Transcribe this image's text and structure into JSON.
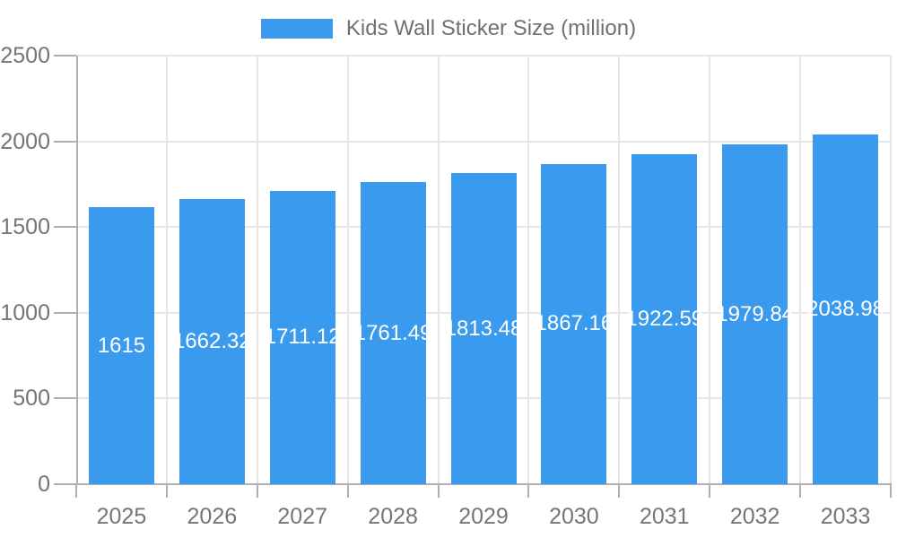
{
  "chart_data": {
    "type": "bar",
    "title": "Kids Wall Sticker Size (million)",
    "legend": {
      "label": "Kids Wall Sticker Size (million)",
      "position": "top"
    },
    "categories": [
      "2025",
      "2026",
      "2027",
      "2028",
      "2029",
      "2030",
      "2031",
      "2032",
      "2033"
    ],
    "series": [
      {
        "name": "Kids Wall Sticker Size (million)",
        "values": [
          1615,
          1662.32,
          1711.12,
          1761.49,
          1813.48,
          1867.16,
          1922.59,
          1979.84,
          2038.98
        ],
        "value_labels": [
          "1615",
          "1662.32",
          "1711.12",
          "1761.49",
          "1813.48",
          "1867.16",
          "1922.59",
          "1979.84",
          "2038.98"
        ]
      }
    ],
    "xlabel": "",
    "ylabel": "",
    "ylim": [
      0,
      2500
    ],
    "yticks": [
      0,
      500,
      1000,
      1500,
      2000,
      2500
    ],
    "grid": true,
    "legend_position": "top",
    "colors": {
      "bar": "#3a9aee",
      "axis": "#b0b0b0",
      "grid": "#e6e6e6",
      "tick_label": "#757575",
      "legend_text": "#6e7079",
      "value_label": "#ffffff"
    }
  }
}
